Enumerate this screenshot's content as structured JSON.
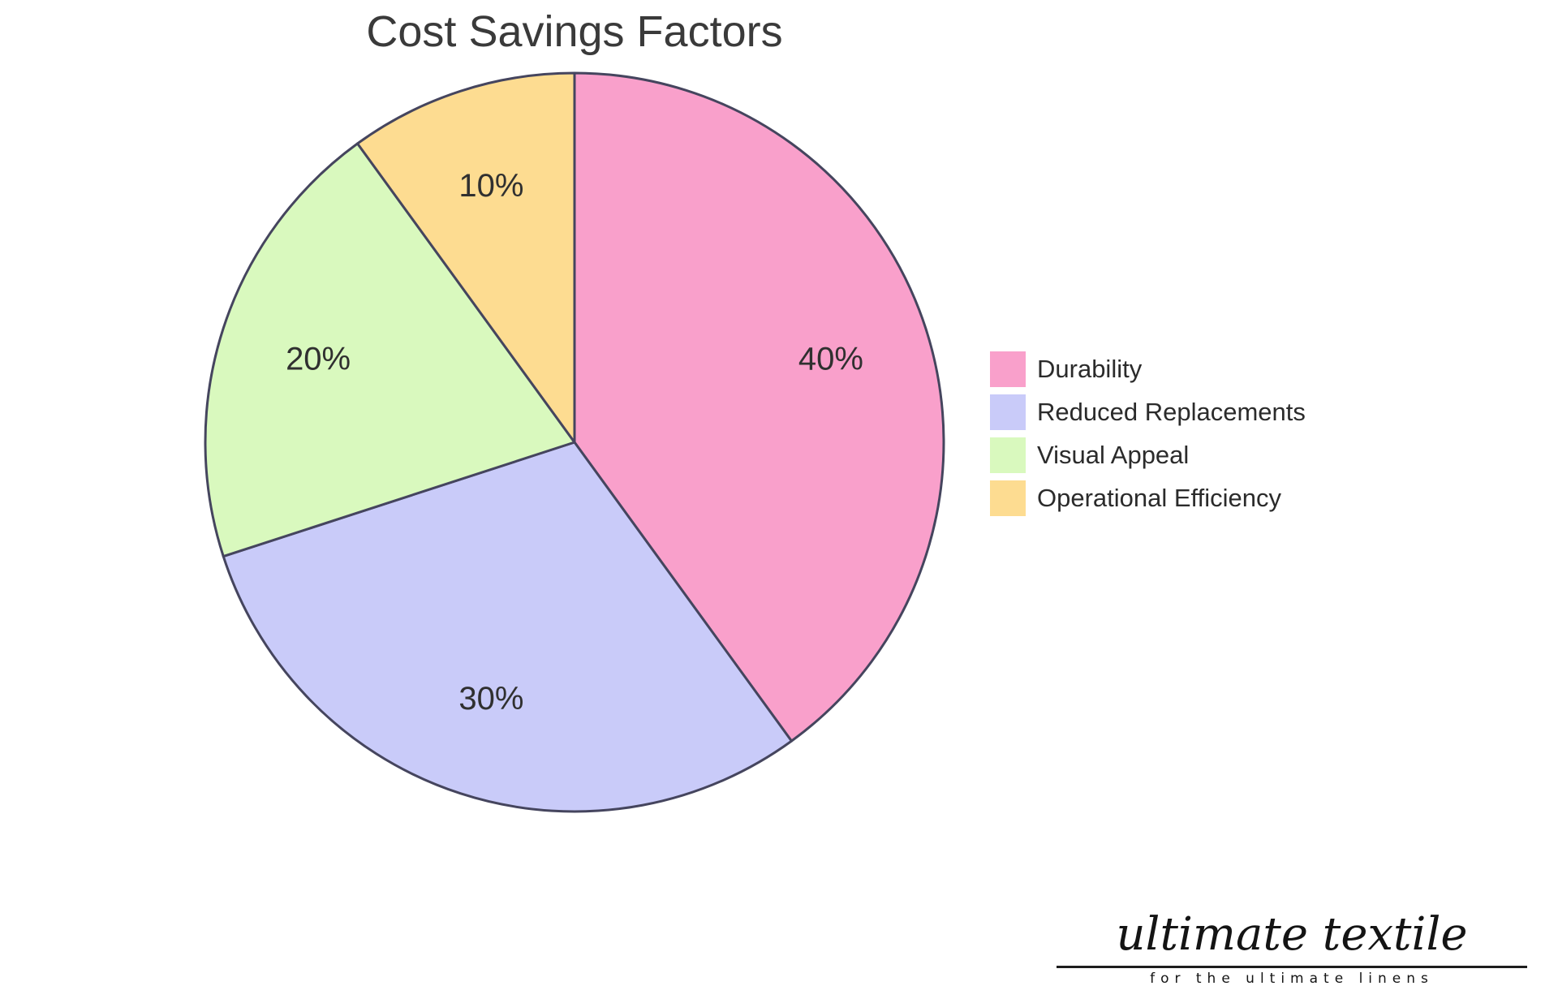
{
  "chart_data": {
    "type": "pie",
    "title": "Cost Savings Factors",
    "categories": [
      "Durability",
      "Reduced Replacements",
      "Visual Appeal",
      "Operational Efficiency"
    ],
    "values": [
      40,
      30,
      20,
      10
    ],
    "labels": [
      "40%",
      "30%",
      "20%",
      "10%"
    ],
    "colors": [
      "#F9A0CB",
      "#C9CBF9",
      "#D9F9BE",
      "#FDDC91"
    ],
    "slice_border_color": "#45455E",
    "label_color": "#303030",
    "start_angle_deg": 0,
    "direction": "clockwise",
    "legend_position": "right",
    "background": "#FFFFFF"
  },
  "branding": {
    "logo_text": "ultimate textile",
    "tagline": "for the ultimate linens"
  }
}
